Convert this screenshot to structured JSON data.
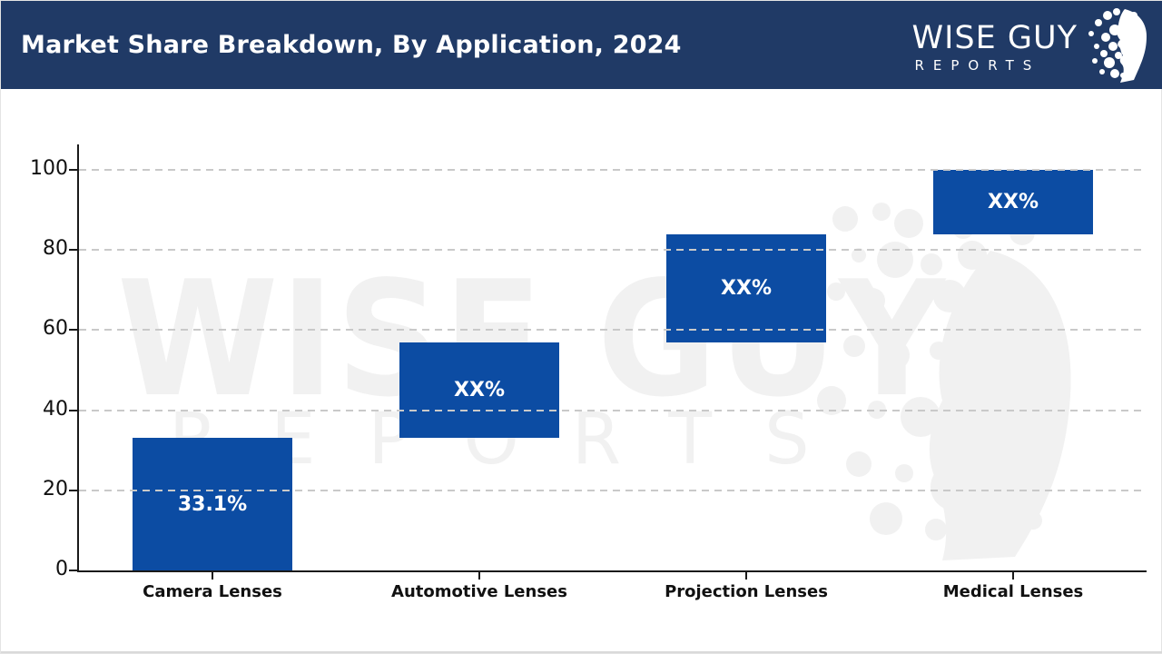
{
  "header": {
    "title": "Market Share Breakdown, By Application, 2024",
    "bg_color": "#203a66",
    "logo": {
      "title": "WISE GUY",
      "subtitle": "REPORTS"
    }
  },
  "watermark": {
    "title": "WISE GUY",
    "subtitle": "REPORTS"
  },
  "chart_data": {
    "type": "bar",
    "variant": "waterfall",
    "title": "Market Share Breakdown, By Application, 2024",
    "categories": [
      "Camera Lenses",
      "Automotive Lenses",
      "Projection Lenses",
      "Medical Lenses"
    ],
    "segments": [
      {
        "category": "Camera Lenses",
        "label": "33.1%",
        "start": 0,
        "end": 33.1
      },
      {
        "category": "Automotive Lenses",
        "label": "XX%",
        "start": 33.1,
        "end": 57
      },
      {
        "category": "Projection Lenses",
        "label": "XX%",
        "start": 57,
        "end": 84
      },
      {
        "category": "Medical Lenses",
        "label": "XX%",
        "start": 84,
        "end": 100
      }
    ],
    "xlabel": "",
    "ylabel": "",
    "ylim": [
      0,
      106
    ],
    "yticks": [
      0,
      20,
      40,
      60,
      80,
      100
    ],
    "grid": "horizontal-dashed-over-bars",
    "legend": "none",
    "bar_color": "#0c4ca3",
    "bar_label_color": "#ffffff"
  }
}
